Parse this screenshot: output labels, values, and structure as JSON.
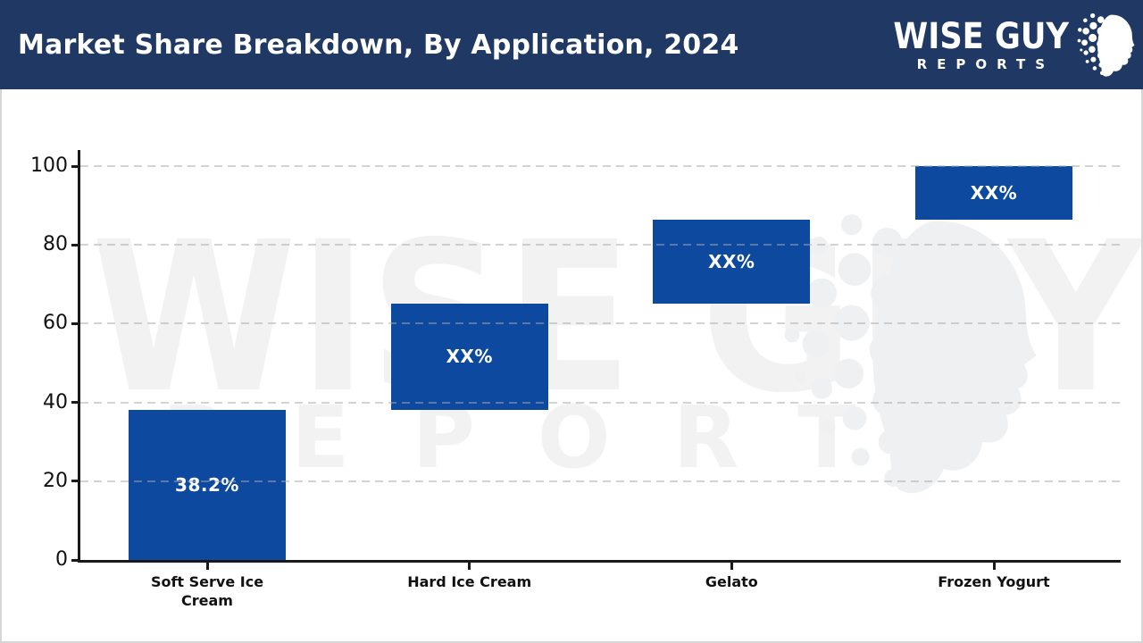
{
  "header": {
    "title": "Market Share Breakdown, By Application, 2024",
    "logo": {
      "wordmark": "WISE GUY",
      "subtext": "REPORTS"
    }
  },
  "watermark": {
    "wordmark": "WISE GUY",
    "subtext": "REPORTS"
  },
  "colors": {
    "header_bg": "#1f3864",
    "title_text": "#ffffff",
    "bar_fill": "#0d4a9f",
    "bar_label_text": "#ffffff",
    "axis": "#1a1a1a",
    "gridline": "#d9d9d9",
    "watermark_text": "#f2f2f3"
  },
  "chart_data": {
    "type": "bar",
    "subtype": "floating-waterfall",
    "title": "Market Share Breakdown, By Application, 2024",
    "categories": [
      "Soft Serve Ice Cream",
      "Hard Ice Cream",
      "Gelato",
      "Frozen Yogurt"
    ],
    "segments": [
      {
        "category": "Soft Serve Ice Cream",
        "start": 0,
        "end": 38.2,
        "label": "38.2%"
      },
      {
        "category": "Hard Ice Cream",
        "start": 38.2,
        "end": 65,
        "label": "XX%"
      },
      {
        "category": "Gelato",
        "start": 65,
        "end": 86.5,
        "label": "XX%"
      },
      {
        "category": "Frozen Yogurt",
        "start": 86.5,
        "end": 100,
        "label": "XX%"
      }
    ],
    "xlabel": "",
    "ylabel": "",
    "yticks": [
      0,
      20,
      40,
      60,
      80,
      100
    ],
    "ylim": [
      0,
      104
    ],
    "grid": "horizontal-dashed",
    "legend_position": "none"
  }
}
